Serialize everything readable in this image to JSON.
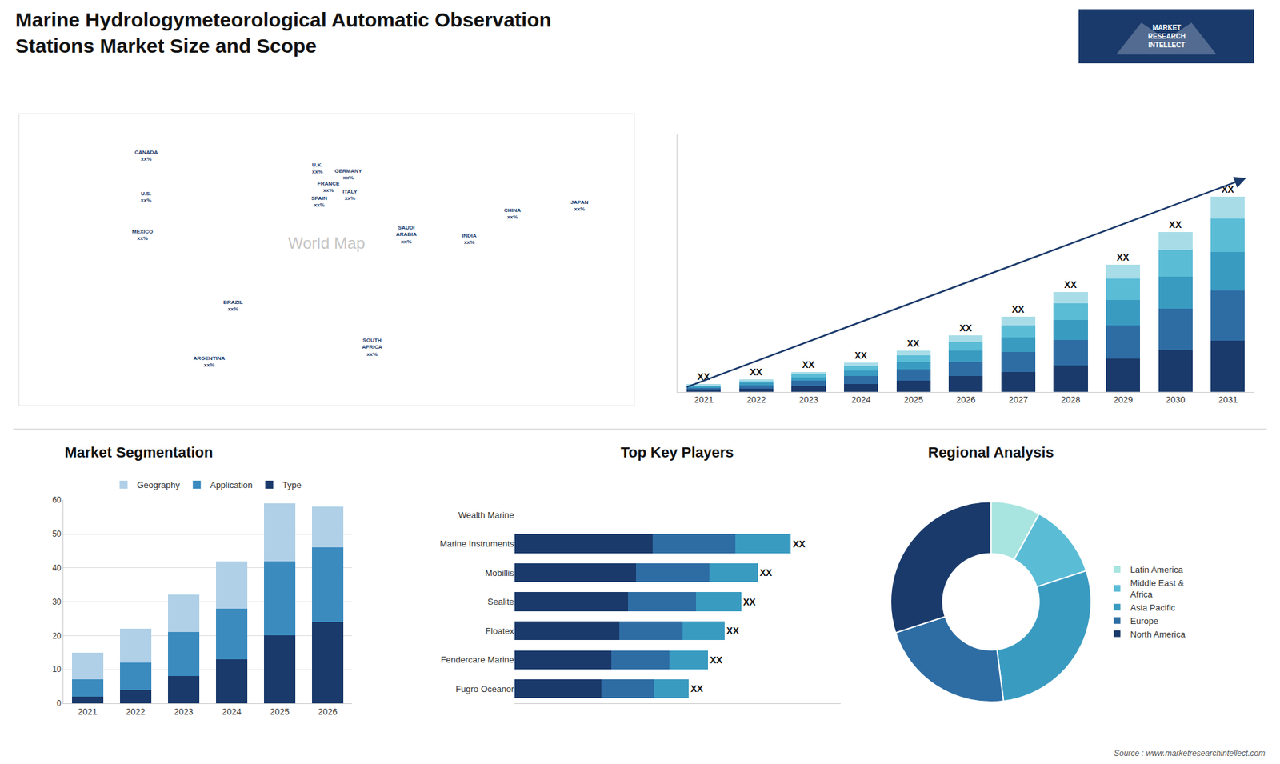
{
  "title": "Marine Hydrologymeteorological Automatic Observation\nStations Market Size and Scope",
  "annotations": [
    {
      "text": "Source : www.marketresearchintellect.com"
    },
    {
      "text": "MARKET\nRESEARCH\nINTELLECT"
    }
  ],
  "chart_data": [
    {
      "type": "map",
      "title": "World Map",
      "xlim": [
        -170,
        170
      ],
      "ylim": [
        -58,
        82
      ],
      "xticks": [],
      "yticks": [],
      "tick_labels": false,
      "annotations": [
        {
          "text": "CANADA\nxx%",
          "x": -100,
          "y": 62
        },
        {
          "text": "U.S.\nxx%",
          "x": -100,
          "y": 42
        },
        {
          "text": "MEXICO\nxx%",
          "x": -102,
          "y": 24
        },
        {
          "text": "BRAZIL\nxx%",
          "x": -52,
          "y": -10
        },
        {
          "text": "ARGENTINA\nxx%",
          "x": -65,
          "y": -37
        },
        {
          "text": "U.K.\nxx%",
          "x": -5,
          "y": 56
        },
        {
          "text": "FRANCE\nxx%",
          "x": 1,
          "y": 47
        },
        {
          "text": "SPAIN\nxx%",
          "x": -4,
          "y": 40
        },
        {
          "text": "GERMANY\nxx%",
          "x": 12,
          "y": 53
        },
        {
          "text": "ITALY\nxx%",
          "x": 13,
          "y": 43
        },
        {
          "text": "SAUDI\nARABIA\nxx%",
          "x": 44,
          "y": 24
        },
        {
          "text": "SOUTH\nAFRICA\nxx%",
          "x": 25,
          "y": -30
        },
        {
          "text": "CHINA\nxx%",
          "x": 103,
          "y": 34
        },
        {
          "text": "INDIA\nxx%",
          "x": 79,
          "y": 22
        },
        {
          "text": "JAPAN\nxx%",
          "x": 140,
          "y": 38
        }
      ]
    },
    {
      "type": "bar",
      "stacked": true,
      "tick_labels": "x",
      "categories": [
        "2021",
        "2022",
        "2023",
        "2024",
        "2025",
        "2026",
        "2027",
        "2028",
        "2029",
        "2030",
        "2031"
      ],
      "ylim": [
        0,
        232.32
      ],
      "yticks": [],
      "series": [
        {
          "color": "#1a3a6b",
          "values": [
            2,
            3,
            5,
            7,
            10,
            14,
            18,
            24,
            30,
            38,
            46
          ]
        },
        {
          "color": "#2e6da4",
          "values": [
            2,
            3,
            5,
            7,
            10,
            13,
            18,
            23,
            30,
            37,
            45
          ]
        },
        {
          "color": "#3a9bc1",
          "values": [
            1,
            2,
            3,
            5,
            7,
            10,
            13,
            18,
            23,
            29,
            35
          ]
        },
        {
          "color": "#5bbcd6",
          "values": [
            1,
            2,
            3,
            4,
            6,
            8,
            11,
            15,
            19,
            24,
            30
          ]
        },
        {
          "color": "#a8dde8",
          "values": [
            1,
            1,
            2,
            3,
            4,
            6,
            8,
            10,
            13,
            16,
            20
          ],
          "value_labels": [
            "XX",
            "XX",
            "XX",
            "XX",
            "XX",
            "XX",
            "XX",
            "XX",
            "XX",
            "XX",
            "XX"
          ]
        }
      ]
    },
    {
      "type": "bar",
      "title": "Market Segmentation",
      "stacked": true,
      "grid": true,
      "legend": "top",
      "categories": [
        "2021",
        "2022",
        "2023",
        "2024",
        "2025",
        "2026"
      ],
      "ylim": [
        0,
        60
      ],
      "yticks": [
        0,
        10,
        20,
        30,
        40,
        50,
        60
      ],
      "series": [
        {
          "name": "Type",
          "color": "#1a3a6b",
          "values": [
            2,
            4,
            8,
            13,
            20,
            24
          ]
        },
        {
          "name": "Application",
          "color": "#3b8bbf",
          "values": [
            5,
            8,
            13,
            15,
            22,
            22
          ]
        },
        {
          "name": "Geography",
          "color": "#b0d0e8",
          "values": [
            8,
            10,
            11,
            14,
            17,
            12
          ]
        }
      ]
    },
    {
      "type": "bar",
      "title": "Top Key Players",
      "orientation": "horizontal",
      "stacked": true,
      "tick_labels": "y",
      "categories": [
        "Wealth Marine",
        "Marine Instruments",
        "Mobillis",
        "Sealite",
        "Floatex",
        "Fendercare Marine",
        "Fugro Oceanor"
      ],
      "xlim": [
        0,
        118
      ],
      "xticks": [],
      "series": [
        {
          "color": "#1a3a6b",
          "values": [
            0,
            50,
            44,
            41,
            38,
            35,
            31.5
          ]
        },
        {
          "color": "#2e6da4",
          "values": [
            0,
            30,
            26.4,
            24.6,
            22.8,
            21,
            18.9
          ]
        },
        {
          "color": "#3a9bc1",
          "values": [
            0,
            20,
            17.6,
            16.4,
            15.2,
            14,
            12.6
          ],
          "value_labels": [
            null,
            "XX",
            "XX",
            "XX",
            "XX",
            "XX",
            "XX"
          ]
        }
      ]
    },
    {
      "type": "pie",
      "title": "Regional Analysis",
      "legend": "right",
      "categories": [
        "Latin America",
        "Middle East &\nAfrica",
        "Asia Pacific",
        "Europe",
        "North America"
      ],
      "values": [
        8,
        12,
        28,
        22,
        30
      ],
      "colors": [
        "#a8e4e0",
        "#5bbcd6",
        "#3a9bc1",
        "#2e6da4",
        "#1a3a6b"
      ]
    }
  ]
}
